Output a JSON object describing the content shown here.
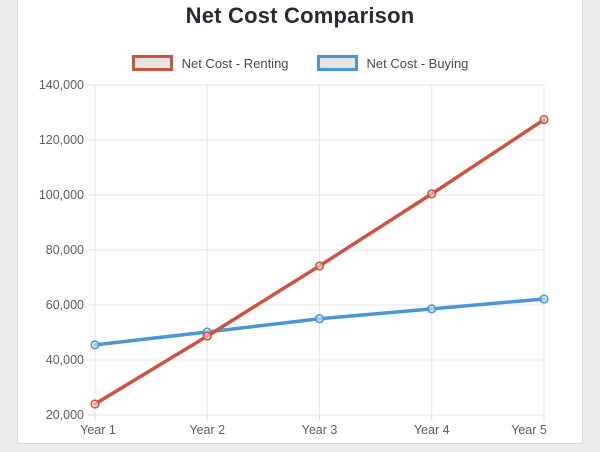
{
  "page": {
    "background_color": "#ececec",
    "card_background_color": "#ffffff",
    "card_border_color": "#d5d5d5"
  },
  "chart_data": {
    "type": "line",
    "title": "Net Cost Comparison",
    "categories": [
      "Year 1",
      "Year 2",
      "Year 3",
      "Year 4",
      "Year 5"
    ],
    "series": [
      {
        "name": "Net Cost - Renting",
        "color": "#cd5341",
        "values": [
          24000,
          48700,
          74200,
          100400,
          127400
        ]
      },
      {
        "name": "Net Cost - Buying",
        "color": "#4c96d5",
        "values": [
          45500,
          50200,
          55000,
          58600,
          62200
        ]
      }
    ],
    "ylim": [
      20000,
      140000
    ],
    "ytick_step": 20000,
    "ytick_labels": [
      "20,000",
      "40,000",
      "60,000",
      "80,000",
      "100,000",
      "120,000",
      "140,000"
    ],
    "grid": true,
    "gridline_color": "#e6e6e6",
    "tick_color": "#dcdcdc",
    "legend_position": "top",
    "legend_swatch_fill": "#e5e5e5",
    "point_style": "open-circle"
  }
}
